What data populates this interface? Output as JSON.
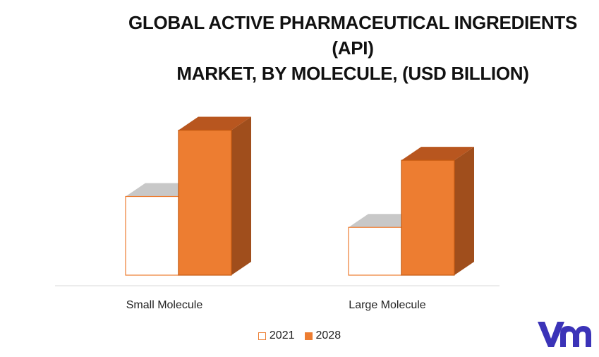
{
  "chart_data": {
    "type": "bar",
    "title_lines": [
      "GLOBAL ACTIVE PHARMACEUTICAL INGREDIENTS (API)",
      "MARKET, BY MOLECULE, (USD BILLION)"
    ],
    "categories": [
      "Small Molecule",
      "Large Molecule"
    ],
    "series": [
      {
        "name": "2021",
        "values": [
          102,
          62
        ],
        "color": "#FFFFFF",
        "border": "#ED7D31",
        "top_color": "#C8C8C8"
      },
      {
        "name": "2028",
        "values": [
          188,
          149
        ],
        "color": "#ED7D31",
        "border": "#C55A11",
        "top_color": "#B8561F",
        "side_color": "#A04E1C"
      }
    ],
    "ylim": [
      0,
      215
    ],
    "grid": false,
    "legend_position": "bottom",
    "style": "3d-column"
  },
  "logo": {
    "name": "vmr-logo-icon",
    "color": "#3B33B8"
  }
}
